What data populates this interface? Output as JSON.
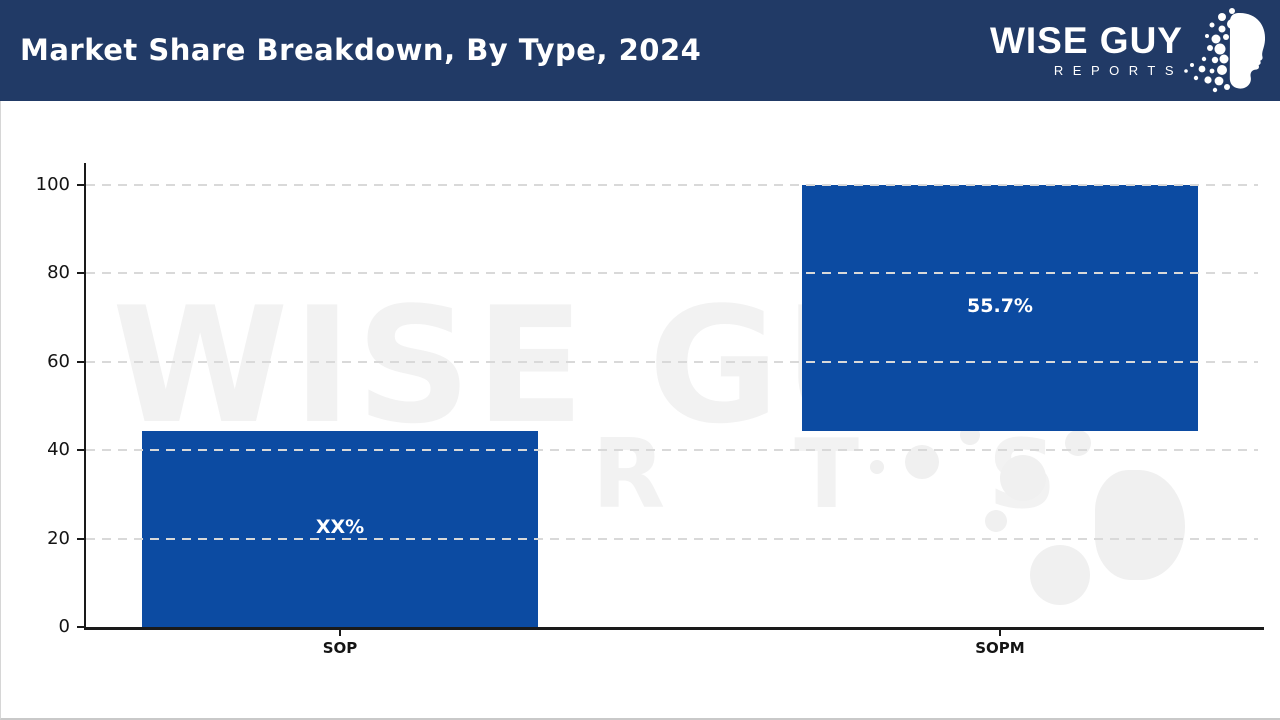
{
  "header": {
    "title": "Market Share Breakdown, By Type, 2024",
    "bg_color": "#213a66",
    "logo": {
      "line1": "WISE GUY",
      "line2": "REPORTS"
    }
  },
  "watermark": {
    "line1": "WISE GU",
    "line2": "R T S"
  },
  "chart_data": {
    "type": "bar",
    "title": "Market Share Breakdown, By Type, 2024",
    "categories": [
      "SOP",
      "SOPM"
    ],
    "bars": [
      {
        "category": "SOP",
        "start": 0,
        "end": 44.3,
        "label": "XX%"
      },
      {
        "category": "SOPM",
        "start": 44.3,
        "end": 100,
        "label": "55.7%"
      }
    ],
    "yticks": [
      0,
      20,
      40,
      60,
      80,
      100
    ],
    "ylim": [
      0,
      105
    ],
    "xlabel": "",
    "ylabel": "",
    "bar_color": "#0c4ba2",
    "grid": "horizontal-dashed",
    "grid_color": "#d9d9d9",
    "legend": "none"
  }
}
